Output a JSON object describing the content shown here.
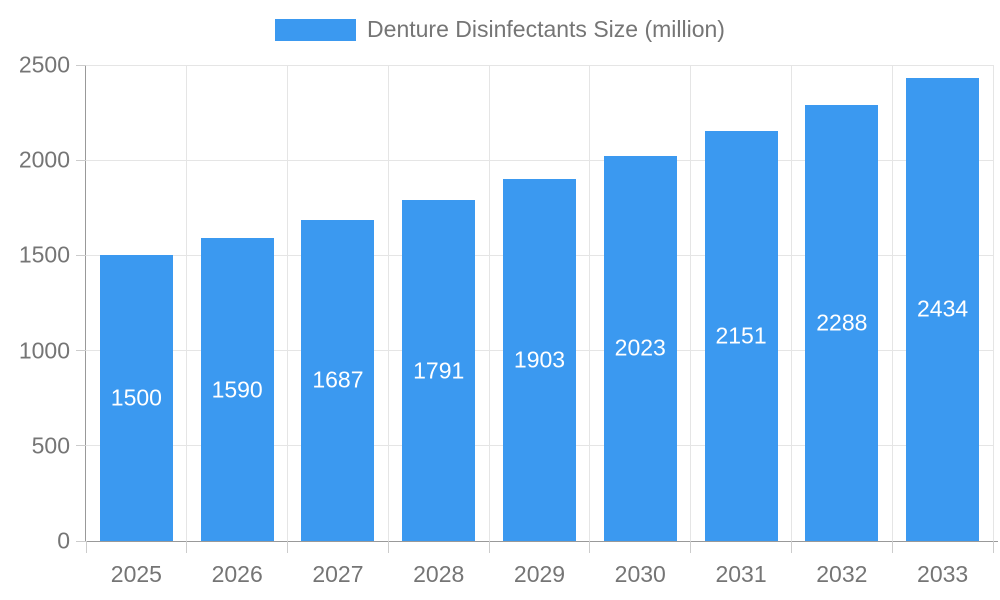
{
  "chart_data": {
    "type": "bar",
    "title": "Denture Disinfectants Size (million)",
    "categories": [
      "2025",
      "2026",
      "2027",
      "2028",
      "2029",
      "2030",
      "2031",
      "2032",
      "2033"
    ],
    "values": [
      1500,
      1590,
      1687,
      1791,
      1903,
      2023,
      2151,
      2288,
      2434
    ],
    "xlabel": "",
    "ylabel": "",
    "ylim": [
      0,
      2500
    ],
    "yticks": [
      0,
      500,
      1000,
      1500,
      2000,
      2500
    ],
    "grid": true,
    "legend_position": "top",
    "colors": {
      "bar": "#3b99f0",
      "bar_label": "#ffffff",
      "axis_text": "#757575",
      "grid_line": "#e5e5e5",
      "axis_line": "#999999",
      "tick_line": "#cccccc"
    }
  }
}
